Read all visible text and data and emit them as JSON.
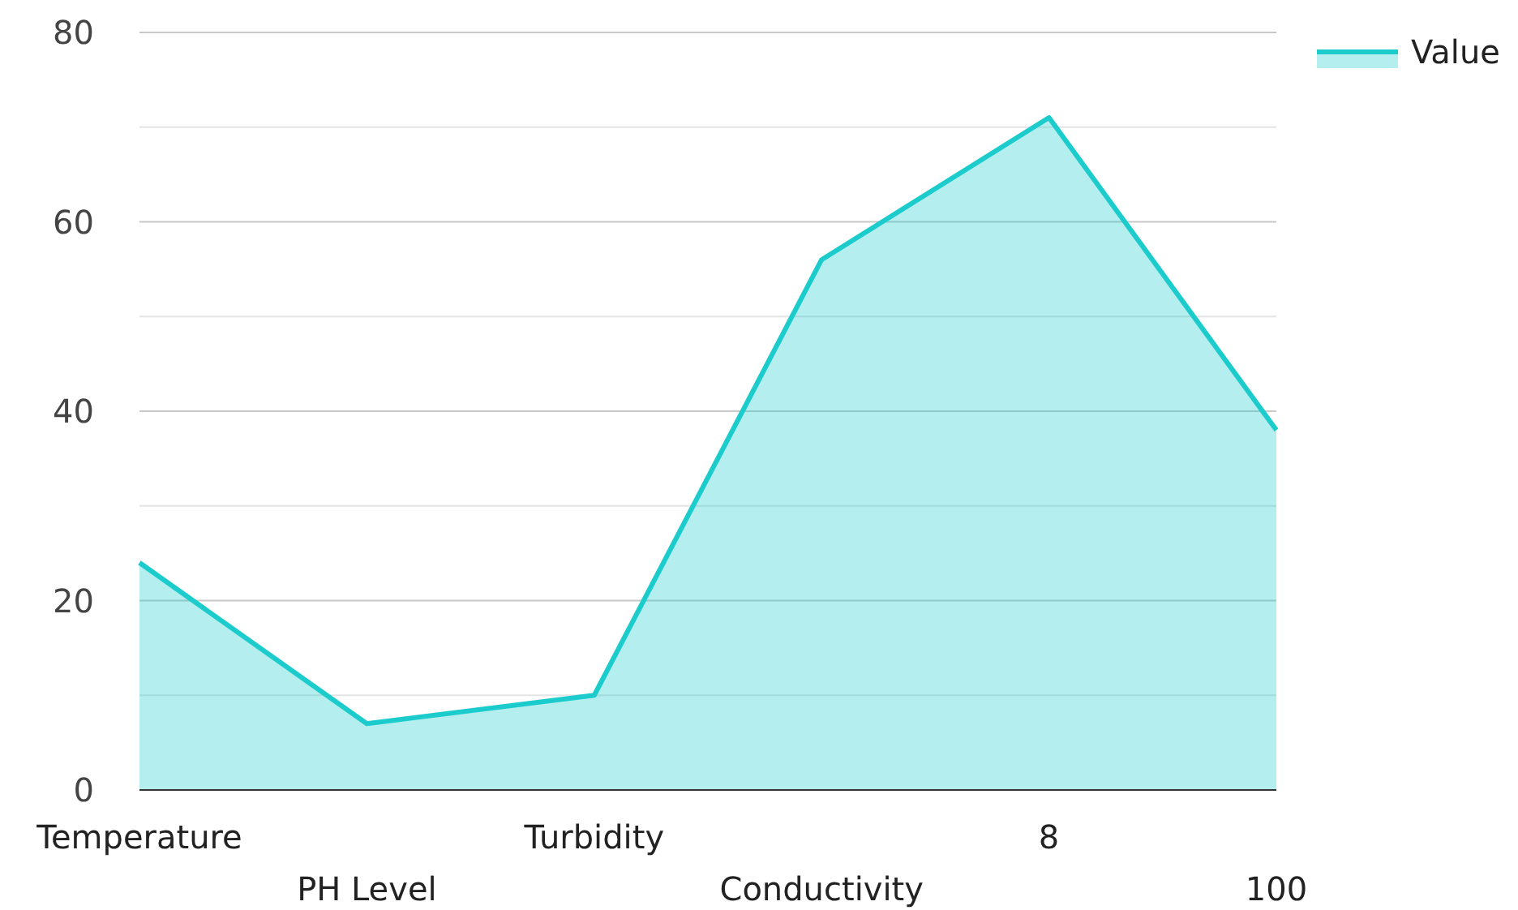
{
  "chart_data": {
    "type": "area",
    "categories": [
      "Temperature",
      "PH Level",
      "Turbidity",
      "Conductivity",
      "8",
      "100"
    ],
    "series": [
      {
        "name": "Value",
        "color": "#1ccccc",
        "values": [
          24,
          7,
          10,
          56,
          71,
          38
        ]
      }
    ],
    "ylim": [
      0,
      80
    ],
    "yticks": [
      0,
      {
        "value": 10,
        "label": null
      },
      20,
      {
        "value": 30,
        "label": null
      },
      40,
      {
        "value": 50,
        "label": null
      },
      60,
      {
        "value": 70,
        "label": null
      },
      80
    ],
    "grid": true,
    "legend": "top right"
  }
}
